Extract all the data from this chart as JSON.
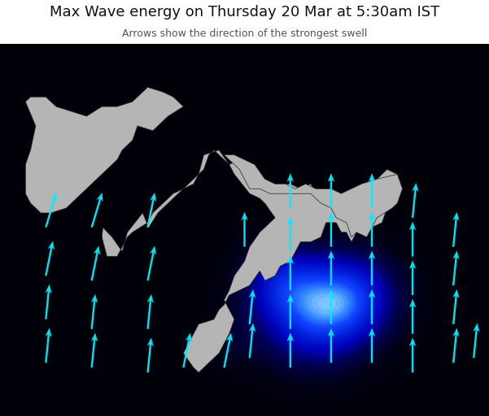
{
  "title": "Max Wave energy on Thursday 20 Mar at 5:30am IST",
  "subtitle": "Arrows show the direction of the strongest swell",
  "title_fontsize": 13,
  "subtitle_fontsize": 9,
  "figsize": [
    6.01,
    5.12
  ],
  "dpi": 100,
  "bg_color": "#ffffff",
  "title_color": "#111111",
  "subtitle_color": "#555555",
  "map_extent_lon_min": 58.0,
  "map_extent_lon_max": 106.0,
  "map_extent_lat_min": 3.5,
  "map_extent_lat_max": 42.0,
  "ocean_base_color": "#000008",
  "arrow_color": "#00eeff",
  "arrow_color_bright": "#aaffff",
  "wave_energy_centers": [
    {
      "lon": 88.5,
      "lat": 14.0,
      "strength": 2.5,
      "spread_lon": 6.0,
      "spread_lat": 6.0
    },
    {
      "lon": 93.0,
      "lat": 16.0,
      "strength": 1.8,
      "spread_lon": 5.0,
      "spread_lat": 5.0
    },
    {
      "lon": 85.0,
      "lat": 18.0,
      "strength": 1.2,
      "spread_lon": 4.0,
      "spread_lat": 4.0
    },
    {
      "lon": 80.0,
      "lat": 11.0,
      "strength": 0.5,
      "spread_lon": 3.0,
      "spread_lat": 3.0
    }
  ],
  "arrows": [
    {
      "lon": 62.5,
      "lat": 23.0,
      "u": 0.3,
      "v": 1.0
    },
    {
      "lon": 62.5,
      "lat": 18.0,
      "u": 0.2,
      "v": 1.0
    },
    {
      "lon": 62.5,
      "lat": 13.5,
      "u": 0.1,
      "v": 1.0
    },
    {
      "lon": 62.5,
      "lat": 9.0,
      "u": 0.1,
      "v": 1.0
    },
    {
      "lon": 67.0,
      "lat": 23.0,
      "u": 0.3,
      "v": 1.0
    },
    {
      "lon": 67.0,
      "lat": 17.5,
      "u": 0.2,
      "v": 1.0
    },
    {
      "lon": 67.0,
      "lat": 12.5,
      "u": 0.1,
      "v": 1.0
    },
    {
      "lon": 67.0,
      "lat": 8.5,
      "u": 0.1,
      "v": 1.0
    },
    {
      "lon": 72.5,
      "lat": 23.0,
      "u": 0.2,
      "v": 1.0
    },
    {
      "lon": 72.5,
      "lat": 17.5,
      "u": 0.2,
      "v": 1.0
    },
    {
      "lon": 72.5,
      "lat": 12.5,
      "u": 0.1,
      "v": 1.0
    },
    {
      "lon": 72.5,
      "lat": 8.0,
      "u": 0.1,
      "v": 1.0
    },
    {
      "lon": 76.0,
      "lat": 8.5,
      "u": 0.2,
      "v": 1.0
    },
    {
      "lon": 80.0,
      "lat": 8.5,
      "u": 0.2,
      "v": 1.0
    },
    {
      "lon": 82.0,
      "lat": 21.0,
      "u": 0.0,
      "v": 1.0
    },
    {
      "lon": 82.5,
      "lat": 13.0,
      "u": 0.1,
      "v": 1.0
    },
    {
      "lon": 82.5,
      "lat": 9.5,
      "u": 0.1,
      "v": 1.0
    },
    {
      "lon": 86.5,
      "lat": 25.0,
      "u": 0.0,
      "v": 1.0
    },
    {
      "lon": 86.5,
      "lat": 20.5,
      "u": 0.0,
      "v": 1.0
    },
    {
      "lon": 86.5,
      "lat": 16.5,
      "u": 0.0,
      "v": 1.0
    },
    {
      "lon": 86.5,
      "lat": 12.5,
      "u": 0.0,
      "v": 1.0
    },
    {
      "lon": 86.5,
      "lat": 8.5,
      "u": 0.0,
      "v": 1.0
    },
    {
      "lon": 90.5,
      "lat": 25.0,
      "u": 0.0,
      "v": 1.0
    },
    {
      "lon": 90.5,
      "lat": 21.0,
      "u": 0.0,
      "v": 1.0
    },
    {
      "lon": 90.5,
      "lat": 17.0,
      "u": 0.0,
      "v": 1.0
    },
    {
      "lon": 90.5,
      "lat": 13.0,
      "u": 0.0,
      "v": 1.0
    },
    {
      "lon": 90.5,
      "lat": 9.0,
      "u": 0.0,
      "v": 1.0
    },
    {
      "lon": 94.5,
      "lat": 25.0,
      "u": 0.0,
      "v": 1.0
    },
    {
      "lon": 94.5,
      "lat": 21.0,
      "u": 0.0,
      "v": 1.0
    },
    {
      "lon": 94.5,
      "lat": 17.0,
      "u": 0.0,
      "v": 1.0
    },
    {
      "lon": 94.5,
      "lat": 13.0,
      "u": 0.0,
      "v": 1.0
    },
    {
      "lon": 94.5,
      "lat": 9.0,
      "u": 0.0,
      "v": 1.0
    },
    {
      "lon": 98.5,
      "lat": 24.0,
      "u": 0.1,
      "v": 1.0
    },
    {
      "lon": 98.5,
      "lat": 20.0,
      "u": 0.0,
      "v": 1.0
    },
    {
      "lon": 98.5,
      "lat": 16.0,
      "u": 0.0,
      "v": 1.0
    },
    {
      "lon": 98.5,
      "lat": 12.0,
      "u": 0.0,
      "v": 1.0
    },
    {
      "lon": 98.5,
      "lat": 8.0,
      "u": 0.0,
      "v": 1.0
    },
    {
      "lon": 102.5,
      "lat": 21.0,
      "u": 0.1,
      "v": 1.0
    },
    {
      "lon": 102.5,
      "lat": 17.0,
      "u": 0.1,
      "v": 1.0
    },
    {
      "lon": 102.5,
      "lat": 13.0,
      "u": 0.1,
      "v": 1.0
    },
    {
      "lon": 102.5,
      "lat": 9.0,
      "u": 0.1,
      "v": 1.0
    },
    {
      "lon": 104.5,
      "lat": 9.5,
      "u": 0.1,
      "v": 1.0
    }
  ]
}
